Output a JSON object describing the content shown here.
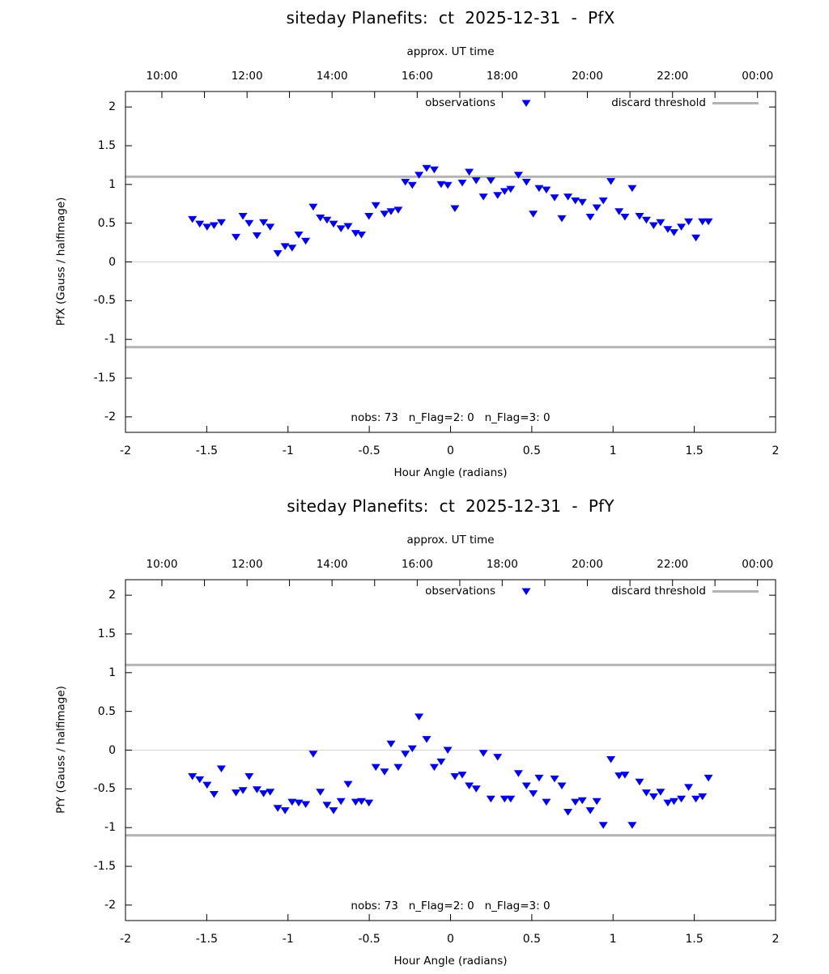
{
  "page": {
    "background": "#ffffff"
  },
  "chart_data": [
    {
      "type": "scatter",
      "title": "siteday Planefits:  ct  2025-12-31  -  PfX",
      "xlabel": "Hour Angle (radians)",
      "ylabel": "PfX (Gauss / halfimage)",
      "stats_text": "nobs: 73   n_Flag=2: 0   n_Flag=3: 0",
      "legend": {
        "observations_label": "observations",
        "threshold_label": "discard threshold",
        "position": "top-right-inside"
      },
      "xlim": [
        -2,
        2
      ],
      "ylim": [
        -2.2,
        2.2
      ],
      "x_ticks": [
        -2,
        -1.5,
        -1,
        -0.5,
        0,
        0.5,
        1,
        1.5,
        2
      ],
      "x_tick_labels": [
        "-2",
        "-1.5",
        "-1",
        "-0.5",
        "0",
        "0.5",
        "1",
        "1.5",
        "2"
      ],
      "y_ticks": [
        -2,
        -1.5,
        -1,
        -0.5,
        0,
        0.5,
        1,
        1.5,
        2
      ],
      "y_tick_labels": [
        "-2",
        "-1.5",
        "-1",
        "-0.5",
        "0",
        "0.5",
        "1",
        "1.5",
        "2"
      ],
      "top_axis": {
        "label": "approx. UT time",
        "tick_positions": [
          -1.776,
          -1.514,
          -1.252,
          -0.991,
          -0.729,
          -0.467,
          -0.205,
          0.057,
          0.318,
          0.58,
          0.842,
          1.104,
          1.366,
          1.627,
          1.889
        ],
        "tick_labels": [
          "10:00",
          "",
          "12:00",
          "",
          "14:00",
          "",
          "16:00",
          "",
          "18:00",
          "",
          "20:00",
          "",
          "22:00",
          "",
          "00:00"
        ]
      },
      "grid": {
        "zero_line": 0,
        "zero_line_color": "#d4d4d4"
      },
      "discard_threshold": [
        1.1,
        -1.1
      ],
      "threshold_color": "#b3b3b3",
      "series": [
        {
          "name": "observations",
          "marker": "triangle-down",
          "color": "#0000ee",
          "x": [
            -1.588,
            -1.543,
            -1.498,
            -1.455,
            -1.41,
            -1.32,
            -1.277,
            -1.239,
            -1.191,
            -1.15,
            -1.11,
            -1.063,
            -1.018,
            -0.975,
            -0.934,
            -0.891,
            -0.845,
            -0.801,
            -0.76,
            -0.72,
            -0.674,
            -0.63,
            -0.584,
            -0.548,
            -0.502,
            -0.46,
            -0.406,
            -0.366,
            -0.322,
            -0.278,
            -0.235,
            -0.194,
            -0.147,
            -0.1,
            -0.058,
            -0.017,
            0.027,
            0.072,
            0.115,
            0.158,
            0.202,
            0.248,
            0.29,
            0.333,
            0.37,
            0.418,
            0.467,
            0.509,
            0.545,
            0.59,
            0.64,
            0.685,
            0.723,
            0.768,
            0.811,
            0.86,
            0.9,
            0.94,
            0.987,
            1.037,
            1.073,
            1.118,
            1.163,
            1.205,
            1.25,
            1.292,
            1.337,
            1.375,
            1.42,
            1.465,
            1.51,
            1.55,
            1.587
          ],
          "y": [
            0.55,
            0.49,
            0.45,
            0.47,
            0.51,
            0.32,
            0.59,
            0.5,
            0.34,
            0.51,
            0.45,
            0.11,
            0.2,
            0.18,
            0.35,
            0.27,
            0.71,
            0.57,
            0.54,
            0.49,
            0.43,
            0.46,
            0.37,
            0.35,
            0.59,
            0.73,
            0.62,
            0.65,
            0.67,
            1.03,
            0.99,
            1.12,
            1.21,
            1.19,
            1.0,
            0.99,
            0.69,
            1.02,
            1.16,
            1.05,
            0.84,
            1.05,
            0.86,
            0.91,
            0.94,
            1.12,
            1.03,
            0.62,
            0.95,
            0.93,
            0.83,
            0.56,
            0.84,
            0.79,
            0.77,
            0.58,
            0.7,
            0.79,
            1.04,
            0.65,
            0.58,
            0.95,
            0.59,
            0.54,
            0.47,
            0.51,
            0.42,
            0.38,
            0.45,
            0.52,
            0.31,
            0.52,
            0.52
          ]
        }
      ]
    },
    {
      "type": "scatter",
      "title": "siteday Planefits:  ct  2025-12-31  -  PfY",
      "xlabel": "Hour Angle (radians)",
      "ylabel": "PfY (Gauss / halfimage)",
      "stats_text": "nobs: 73   n_Flag=2: 0   n_Flag=3: 0",
      "legend": {
        "observations_label": "observations",
        "threshold_label": "discard threshold",
        "position": "top-right-inside"
      },
      "xlim": [
        -2,
        2
      ],
      "ylim": [
        -2.2,
        2.2
      ],
      "x_ticks": [
        -2,
        -1.5,
        -1,
        -0.5,
        0,
        0.5,
        1,
        1.5,
        2
      ],
      "x_tick_labels": [
        "-2",
        "-1.5",
        "-1",
        "-0.5",
        "0",
        "0.5",
        "1",
        "1.5",
        "2"
      ],
      "y_ticks": [
        -2,
        -1.5,
        -1,
        -0.5,
        0,
        0.5,
        1,
        1.5,
        2
      ],
      "y_tick_labels": [
        "-2",
        "-1.5",
        "-1",
        "-0.5",
        "0",
        "0.5",
        "1",
        "1.5",
        "2"
      ],
      "top_axis": {
        "label": "approx. UT time",
        "tick_positions": [
          -1.776,
          -1.514,
          -1.252,
          -0.991,
          -0.729,
          -0.467,
          -0.205,
          0.057,
          0.318,
          0.58,
          0.842,
          1.104,
          1.366,
          1.627,
          1.889
        ],
        "tick_labels": [
          "10:00",
          "",
          "12:00",
          "",
          "14:00",
          "",
          "16:00",
          "",
          "18:00",
          "",
          "20:00",
          "",
          "22:00",
          "",
          "00:00"
        ]
      },
      "grid": {
        "zero_line": 0,
        "zero_line_color": "#d4d4d4"
      },
      "discard_threshold": [
        1.1,
        -1.1
      ],
      "threshold_color": "#b3b3b3",
      "series": [
        {
          "name": "observations",
          "marker": "triangle-down",
          "color": "#0000ee",
          "x": [
            -1.588,
            -1.543,
            -1.498,
            -1.455,
            -1.41,
            -1.32,
            -1.277,
            -1.239,
            -1.191,
            -1.15,
            -1.11,
            -1.063,
            -1.018,
            -0.975,
            -0.934,
            -0.891,
            -0.845,
            -0.801,
            -0.76,
            -0.72,
            -0.674,
            -0.63,
            -0.584,
            -0.548,
            -0.502,
            -0.46,
            -0.406,
            -0.366,
            -0.322,
            -0.278,
            -0.235,
            -0.194,
            -0.147,
            -0.1,
            -0.058,
            -0.017,
            0.027,
            0.072,
            0.115,
            0.158,
            0.202,
            0.248,
            0.29,
            0.333,
            0.37,
            0.418,
            0.467,
            0.509,
            0.545,
            0.59,
            0.64,
            0.685,
            0.723,
            0.768,
            0.811,
            0.86,
            0.9,
            0.94,
            0.987,
            1.037,
            1.073,
            1.118,
            1.163,
            1.205,
            1.25,
            1.292,
            1.337,
            1.375,
            1.42,
            1.465,
            1.51,
            1.55,
            1.587
          ],
          "y": [
            -0.34,
            -0.38,
            -0.45,
            -0.57,
            -0.24,
            -0.55,
            -0.52,
            -0.34,
            -0.51,
            -0.56,
            -0.54,
            -0.75,
            -0.78,
            -0.67,
            -0.68,
            -0.7,
            -0.05,
            -0.54,
            -0.71,
            -0.78,
            -0.66,
            -0.44,
            -0.67,
            -0.66,
            -0.68,
            -0.22,
            -0.28,
            0.08,
            -0.22,
            -0.05,
            0.02,
            0.43,
            0.14,
            -0.22,
            -0.15,
            0.0,
            -0.34,
            -0.32,
            -0.46,
            -0.5,
            -0.04,
            -0.63,
            -0.09,
            -0.63,
            -0.63,
            -0.3,
            -0.46,
            -0.56,
            -0.36,
            -0.67,
            -0.37,
            -0.46,
            -0.8,
            -0.67,
            -0.65,
            -0.78,
            -0.66,
            -0.97,
            -0.12,
            -0.33,
            -0.32,
            -0.97,
            -0.41,
            -0.55,
            -0.6,
            -0.54,
            -0.68,
            -0.66,
            -0.63,
            -0.48,
            -0.63,
            -0.6,
            -0.36
          ]
        }
      ]
    }
  ]
}
